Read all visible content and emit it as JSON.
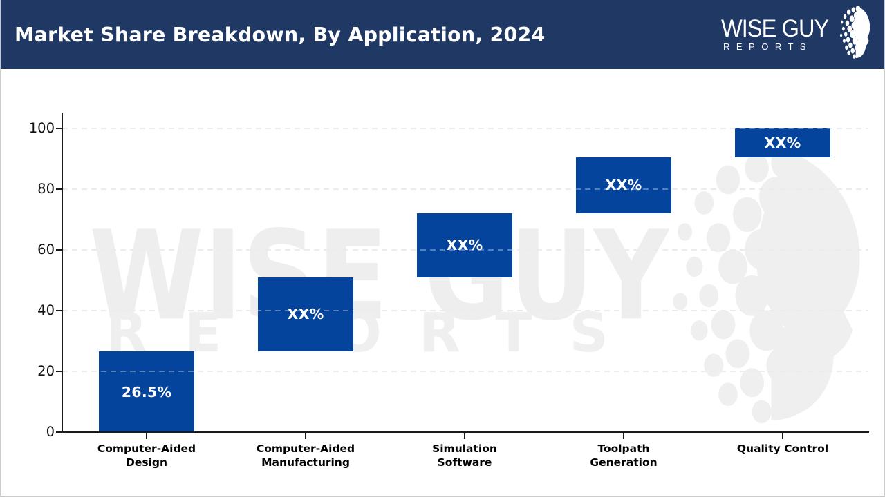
{
  "header": {
    "title": "Market Share Breakdown, By Application, 2024",
    "bg_color": "#1f3864",
    "logo": {
      "line1": "WISE GUY",
      "line2": "REPORTS"
    }
  },
  "watermark": {
    "line1": "WISE GUY",
    "line2": "REPORTS"
  },
  "chart_data": {
    "type": "bar",
    "subtype": "waterfall",
    "title": "Market Share Breakdown, By Application, 2024",
    "categories": [
      "Computer-Aided\nDesign",
      "Computer-Aided\nManufacturing",
      "Simulation\nSoftware",
      "Toolpath\nGeneration",
      "Quality Control"
    ],
    "segments": [
      {
        "category": "Computer-Aided Design",
        "start": 0,
        "end": 26.5,
        "label": "26.5%"
      },
      {
        "category": "Computer-Aided Manufacturing",
        "start": 26.5,
        "end": 51,
        "label": "XX%"
      },
      {
        "category": "Simulation Software",
        "start": 51,
        "end": 72,
        "label": "XX%"
      },
      {
        "category": "Toolpath Generation",
        "start": 72,
        "end": 90.5,
        "label": "XX%"
      },
      {
        "category": "Quality Control",
        "start": 90.5,
        "end": 100,
        "label": "XX%"
      }
    ],
    "xlabel": "",
    "ylabel": "",
    "ylim": [
      0,
      100
    ],
    "yticks": [
      0,
      20,
      40,
      60,
      80,
      100
    ],
    "grid": true,
    "legend": false,
    "bar_color": "#05449c",
    "grid_color": "#e3e3e3",
    "axis_color": "#1a1a1a",
    "bar_label_color": "#ffffff"
  }
}
